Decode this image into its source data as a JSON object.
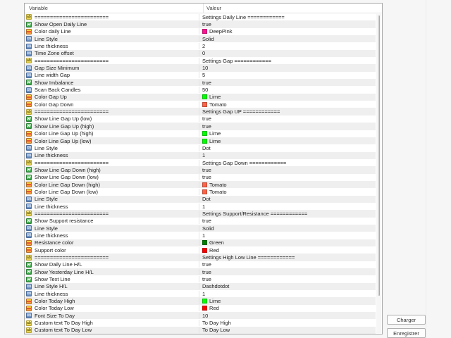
{
  "table": {
    "columns": {
      "variable": "Variable",
      "value": "Valeur"
    },
    "rows": [
      {
        "variable": "========================",
        "value": "Settings Daily Line ============",
        "icon": "text"
      },
      {
        "variable": "Show Open Daily Line",
        "value": "true",
        "icon": "bool"
      },
      {
        "variable": "Color daily Line",
        "value": "DeepPink",
        "icon": "color",
        "swatch": "#FF1493"
      },
      {
        "variable": "Line Style",
        "value": "Solid",
        "icon": "num"
      },
      {
        "variable": "Line thickness",
        "value": "2",
        "icon": "num"
      },
      {
        "variable": "Time Zone offset",
        "value": "0",
        "icon": "num"
      },
      {
        "variable": "========================",
        "value": "Settings Gap ============",
        "icon": "text"
      },
      {
        "variable": "Gap Size Minimum",
        "value": "10",
        "icon": "num"
      },
      {
        "variable": "Line width Gap",
        "value": "5",
        "icon": "num"
      },
      {
        "variable": "Show Imbalance",
        "value": "true",
        "icon": "bool"
      },
      {
        "variable": "Scan Back Candles",
        "value": "50",
        "icon": "num"
      },
      {
        "variable": "Color Gap Up",
        "value": "Lime",
        "icon": "color",
        "swatch": "#00FF00"
      },
      {
        "variable": "Color Gap Down",
        "value": "Tomato",
        "icon": "color",
        "swatch": "#FF6347"
      },
      {
        "variable": "========================",
        "value": "Settings Gap UP ============",
        "icon": "text"
      },
      {
        "variable": "Show Line Gap Up (low)",
        "value": "true",
        "icon": "bool"
      },
      {
        "variable": "Show Line Gap Up (high)",
        "value": "true",
        "icon": "bool"
      },
      {
        "variable": "Color Line Gap Up (high)",
        "value": "Lime",
        "icon": "color",
        "swatch": "#00FF00"
      },
      {
        "variable": "Color Line Gap Up (low)",
        "value": "Lime",
        "icon": "color",
        "swatch": "#00FF00"
      },
      {
        "variable": "Line Style",
        "value": "Dot",
        "icon": "num"
      },
      {
        "variable": "Line thickness",
        "value": "1",
        "icon": "num"
      },
      {
        "variable": "========================",
        "value": "Settings Gap Down ============",
        "icon": "text"
      },
      {
        "variable": "Show Line Gap Down (high)",
        "value": "true",
        "icon": "bool"
      },
      {
        "variable": "Show Line Gap Down (low)",
        "value": "true",
        "icon": "bool"
      },
      {
        "variable": "Color Line Gap Down (high)",
        "value": "Tomato",
        "icon": "color",
        "swatch": "#FF6347"
      },
      {
        "variable": "Color Line Gap Down (low)",
        "value": "Tomato",
        "icon": "color",
        "swatch": "#FF6347"
      },
      {
        "variable": "Line Style",
        "value": "Dot",
        "icon": "num"
      },
      {
        "variable": "Line thickness",
        "value": "1",
        "icon": "num"
      },
      {
        "variable": "========================",
        "value": "Settings Support/Resistance ============",
        "icon": "text"
      },
      {
        "variable": "Show Support resistance",
        "value": "true",
        "icon": "bool"
      },
      {
        "variable": "Line Style",
        "value": "Solid",
        "icon": "num"
      },
      {
        "variable": "Line thickness",
        "value": "1",
        "icon": "num"
      },
      {
        "variable": "Resistance color",
        "value": "Green",
        "icon": "color",
        "swatch": "#008000"
      },
      {
        "variable": "Support color",
        "value": "Red",
        "icon": "color",
        "swatch": "#FF0000"
      },
      {
        "variable": "========================",
        "value": "Settings High Low Line ============",
        "icon": "text"
      },
      {
        "variable": "Show Daily Line H/L",
        "value": "true",
        "icon": "bool"
      },
      {
        "variable": "Show Yesterday Line H/L",
        "value": "true",
        "icon": "bool"
      },
      {
        "variable": "Show Text Line",
        "value": "true",
        "icon": "bool"
      },
      {
        "variable": "Line Style H/L",
        "value": "Dashdotdot",
        "icon": "num"
      },
      {
        "variable": "Line thickness",
        "value": "1",
        "icon": "num"
      },
      {
        "variable": "Color Today High",
        "value": "Lime",
        "icon": "color",
        "swatch": "#00FF00"
      },
      {
        "variable": "Color Today Low",
        "value": "Red",
        "icon": "color",
        "swatch": "#FF0000"
      },
      {
        "variable": "Font Size To Day",
        "value": "10",
        "icon": "num"
      },
      {
        "variable": "Custom text To Day High",
        "value": "To Day High",
        "icon": "text"
      },
      {
        "variable": "Custom text To Day Low",
        "value": "To Day Low",
        "icon": "text"
      }
    ]
  },
  "icon_glyphs": {
    "text": "ab",
    "num": "123"
  },
  "buttons": {
    "load": "Charger",
    "save": "Enregistrer"
  },
  "colors": {
    "deeppink": "#FF1493",
    "lime": "#00FF00",
    "tomato": "#FF6347",
    "green": "#008000",
    "red": "#FF0000"
  }
}
